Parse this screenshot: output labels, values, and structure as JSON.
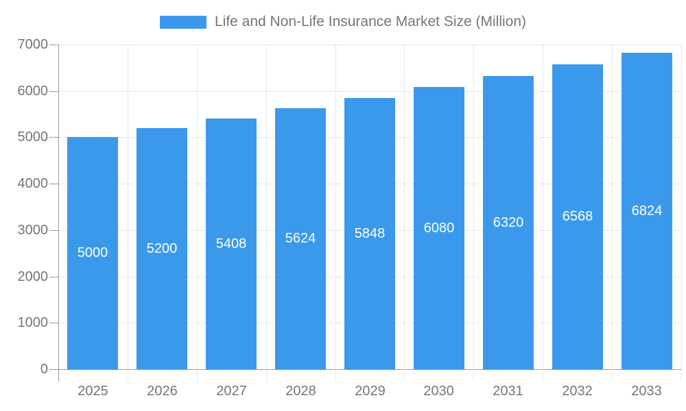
{
  "legend": {
    "series_label": "Life and Non-Life Insurance Market Size (Million)"
  },
  "chart_data": {
    "type": "bar",
    "title": "Life and Non-Life Insurance Market Size (Million)",
    "categories": [
      "2025",
      "2026",
      "2027",
      "2028",
      "2029",
      "2030",
      "2031",
      "2032",
      "2033"
    ],
    "values": [
      5000,
      5200,
      5408,
      5624,
      5848,
      6080,
      6320,
      6568,
      6824
    ],
    "xlabel": "",
    "ylabel": "",
    "ylim": [
      0,
      7000
    ],
    "yticks": [
      0,
      1000,
      2000,
      3000,
      4000,
      5000,
      6000,
      7000
    ],
    "grid": true,
    "legend_position": "top",
    "bar_labels_inside": true,
    "colors": {
      "bar": "#3B99EC",
      "bar_label": "#FFFFFF",
      "axis_text": "#757575",
      "legend_text": "#757575",
      "gridline": "#E6E6E6",
      "axis_line": "#999999",
      "background": "#FFFFFF"
    }
  }
}
